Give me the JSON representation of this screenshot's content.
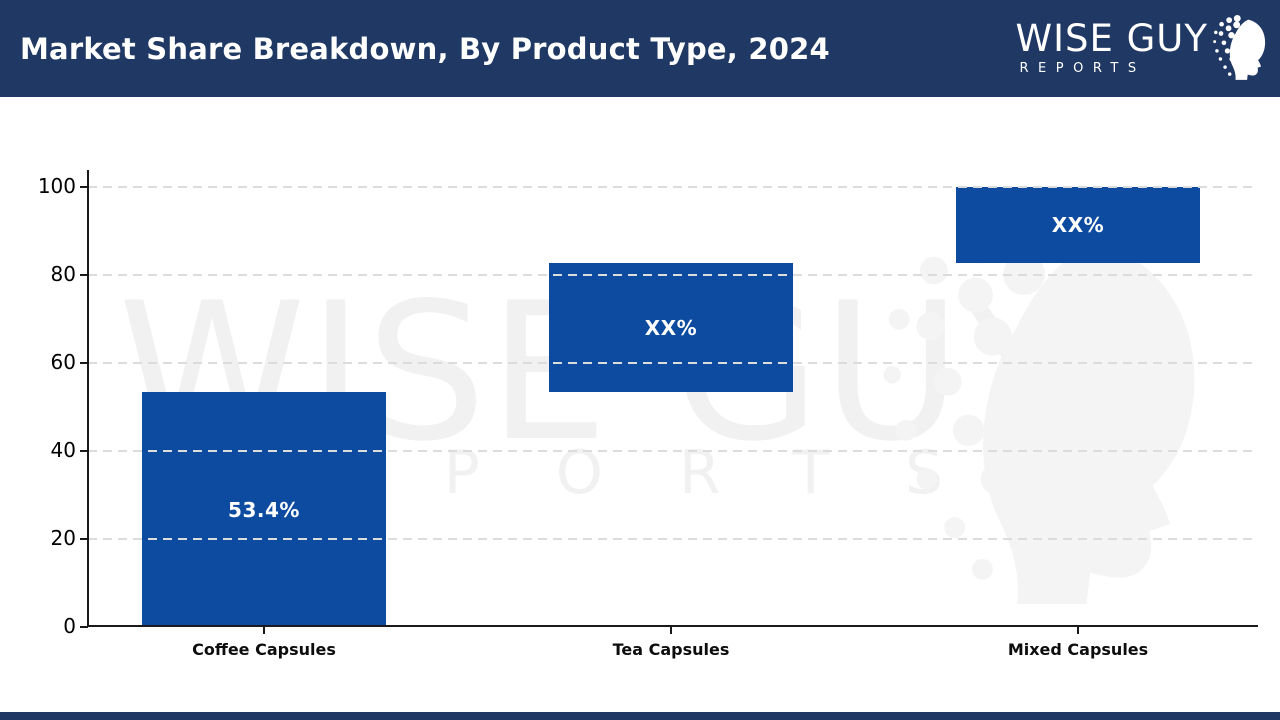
{
  "header": {
    "title": "Market Share Breakdown, By Product Type, 2024",
    "bg_color": "#1f3864",
    "logo": {
      "line1": "WISE GUY",
      "line2": "REPORTS"
    }
  },
  "watermark": {
    "line1": "WISE GUY",
    "line2": "REPORTS"
  },
  "footer": {
    "bg_color": "#1f3864"
  },
  "chart_data": {
    "type": "bar",
    "subtype": "waterfall",
    "title": "Market Share Breakdown, By Product Type, 2024",
    "categories": [
      "Coffee Capsules",
      "Tea Capsules",
      "Mixed Capsules"
    ],
    "segments": [
      {
        "category": "Coffee Capsules",
        "label": "53.4%",
        "start": 0,
        "end": 53.4
      },
      {
        "category": "Tea Capsules",
        "label": "XX%",
        "start": 53.4,
        "end": 82.7
      },
      {
        "category": "Mixed Capsules",
        "label": "XX%",
        "start": 82.7,
        "end": 100
      }
    ],
    "ylim": [
      0,
      100
    ],
    "yticks": [
      0,
      20,
      40,
      60,
      80,
      100
    ],
    "xlabel": "",
    "ylabel": "",
    "grid": true,
    "gridline_style": "dashed",
    "gridline_color": "#dcdcdc",
    "bar_color": "#0c4ba0",
    "bar_label_color": "#ffffff",
    "legend": "none"
  }
}
